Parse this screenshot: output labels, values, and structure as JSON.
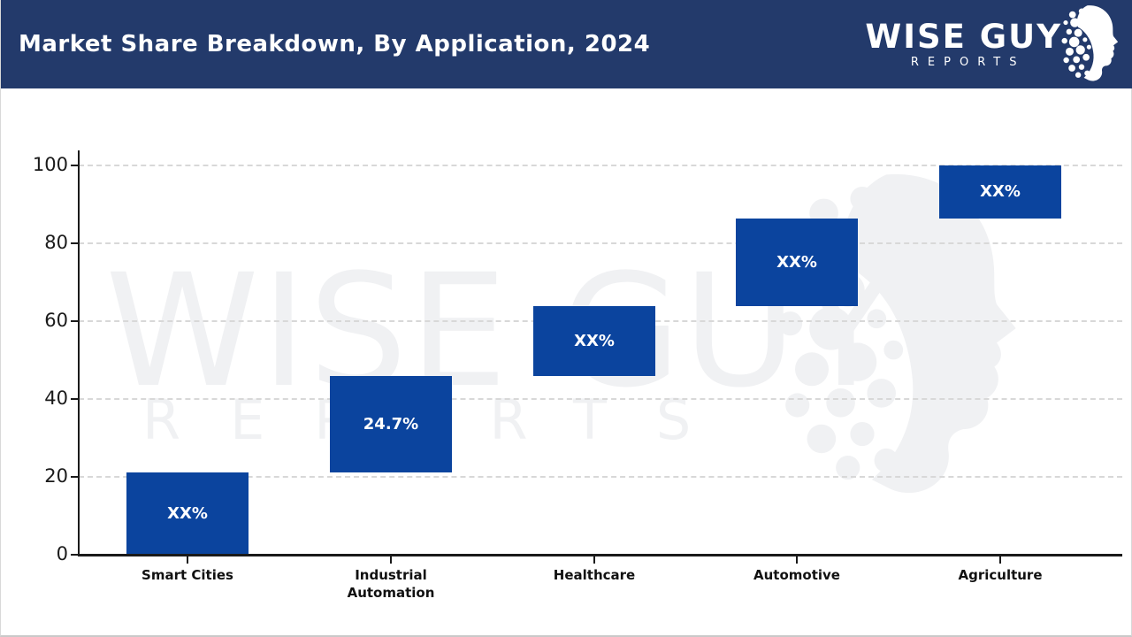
{
  "header": {
    "title": "Market Share Breakdown, By Application, 2024",
    "logo": {
      "line1": "WISE GUY",
      "line2": "REPORTS"
    }
  },
  "watermark": {
    "line1": "WISE GUY",
    "line2": "REPORTS"
  },
  "chart_data": {
    "type": "bar",
    "subtype": "waterfall",
    "title": "Market Share Breakdown, By Application, 2024",
    "categories": [
      "Smart Cities",
      "Industrial Automation",
      "Healthcare",
      "Automotive",
      "Agriculture"
    ],
    "segments": [
      {
        "category": "Smart Cities",
        "start": 0,
        "end": 21.2,
        "label": "XX%"
      },
      {
        "category": "Industrial Automation",
        "start": 21.2,
        "end": 45.9,
        "label": "24.7%"
      },
      {
        "category": "Healthcare",
        "start": 45.9,
        "end": 63.9,
        "label": "XX%"
      },
      {
        "category": "Automotive",
        "start": 63.9,
        "end": 86.4,
        "label": "XX%"
      },
      {
        "category": "Agriculture",
        "start": 86.4,
        "end": 100,
        "label": "XX%"
      }
    ],
    "yticks": [
      0,
      20,
      40,
      60,
      80,
      100
    ],
    "ylim": [
      0,
      100
    ],
    "xlabel": "",
    "ylabel": "",
    "grid": "dashed-horizontal",
    "legend": "none",
    "bar_color": "#0b449e"
  },
  "colors": {
    "header_bg": "#233a6b",
    "bar": "#0b449e",
    "grid": "#d8d8d8",
    "axis": "#1a1a1a",
    "watermark": "#f0f1f3"
  }
}
